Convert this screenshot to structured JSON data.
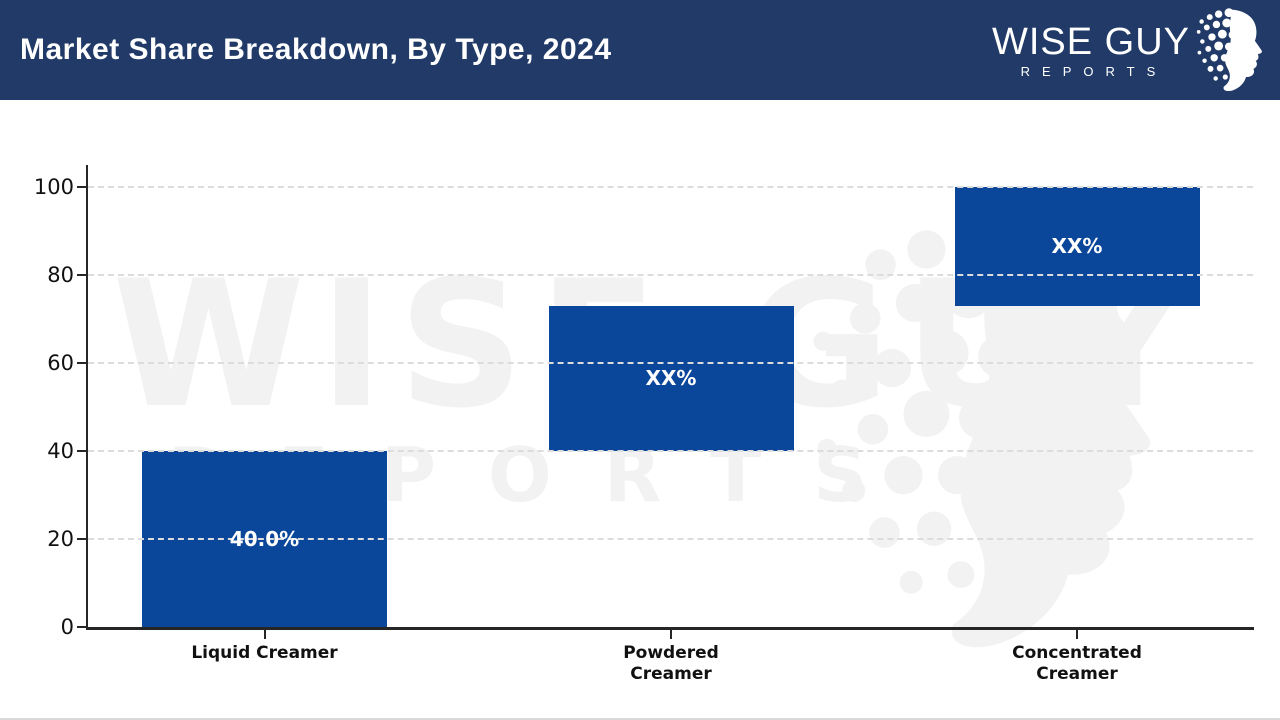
{
  "header": {
    "title": "Market Share Breakdown, By Type, 2024",
    "logo": {
      "line1": "WISE GUY",
      "line2": "REPORTS"
    }
  },
  "watermark": {
    "line1": "WISE GUY",
    "line2": "REPORTS"
  },
  "colors": {
    "header_bg": "#213a67",
    "bar": "#0a4699",
    "bar_label": "#ffffff",
    "axis": "#262626",
    "grid": "#dcdcdc",
    "tick_text": "#111111",
    "watermark": "#f2f2f2"
  },
  "chart_data": {
    "type": "bar",
    "variant": "waterfall-breakdown",
    "title": "Market Share Breakdown, By Type, 2024",
    "categories": [
      "Liquid Creamer",
      "Powdered Creamer",
      "Concentrated Creamer"
    ],
    "segments": [
      {
        "category": "Liquid Creamer",
        "start": 0,
        "end": 40,
        "label": "40.0%"
      },
      {
        "category": "Powdered Creamer",
        "start": 40,
        "end": 73,
        "label": "XX%"
      },
      {
        "category": "Concentrated Creamer",
        "start": 73,
        "end": 100,
        "label": "XX%"
      }
    ],
    "xlabel": "",
    "ylabel": "",
    "yticks": [
      0,
      20,
      40,
      60,
      80,
      100
    ],
    "ylim": [
      0,
      105
    ],
    "grid": "horizontal-dashed",
    "legend": "none",
    "watermark_text": "WISE GUY REPORTS"
  }
}
